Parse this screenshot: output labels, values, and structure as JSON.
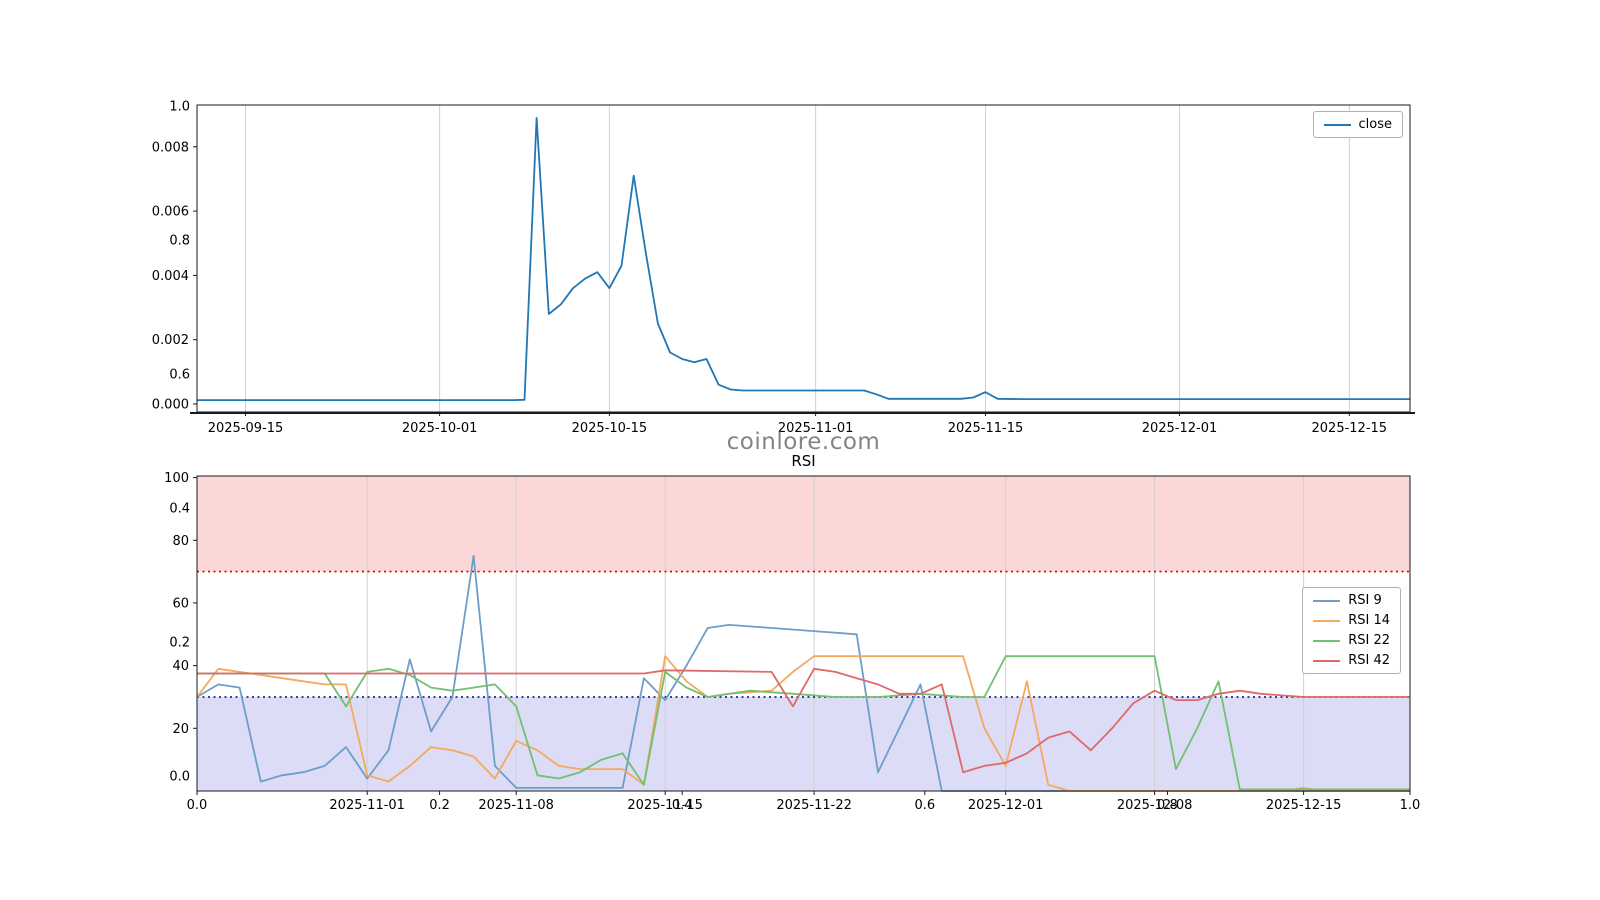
{
  "watermark": "coinlore.com",
  "figure_axis": {
    "x_ticks": [
      "0.0",
      "0.2",
      "0.4",
      "0.6",
      "0.8",
      "1.0"
    ],
    "y_ticks": [
      "0.0",
      "0.2",
      "0.4",
      "0.6",
      "0.8",
      "1.0"
    ]
  },
  "chart_data": [
    {
      "type": "line",
      "name": "price",
      "title": "",
      "x_start": "2025-09-11",
      "x_end": "2025-12-20",
      "x_ticks": [
        "2025-09-15",
        "2025-10-01",
        "2025-10-15",
        "2025-11-01",
        "2025-11-15",
        "2025-12-01",
        "2025-12-15"
      ],
      "ylim": [
        -0.00025,
        0.0093
      ],
      "y_ticks": [
        0,
        0.002,
        0.004,
        0.006,
        0.008
      ],
      "y_tick_labels": [
        "0.000",
        "0.002",
        "0.004",
        "0.006",
        "0.008"
      ],
      "grid_color": "#d0d0d0",
      "legend_position": "upper right",
      "series": [
        {
          "name": "close",
          "color": "#2077b4",
          "days": [
            0,
            26,
            27,
            28,
            29,
            30,
            31,
            32,
            33,
            34,
            35,
            36,
            37,
            38,
            39,
            40,
            41,
            42,
            43,
            44,
            45,
            55,
            56,
            57,
            63,
            64,
            65,
            66,
            68,
            100
          ],
          "values": [
            0.00012,
            0.00012,
            0.00013,
            0.0089,
            0.0028,
            0.0031,
            0.0036,
            0.0039,
            0.0041,
            0.0036,
            0.0043,
            0.0071,
            0.0047,
            0.0025,
            0.0016,
            0.0014,
            0.0013,
            0.0014,
            0.0006,
            0.00045,
            0.00042,
            0.00042,
            0.0003,
            0.00016,
            0.00016,
            0.0002,
            0.00037,
            0.00016,
            0.00015,
            0.00015
          ]
        }
      ]
    },
    {
      "type": "line",
      "name": "rsi",
      "title": "RSI",
      "x_start": "2025-10-24",
      "x_end": "2025-12-20",
      "x_ticks": [
        "2025-11-01",
        "2025-11-08",
        "2025-11-15",
        "2025-11-22",
        "2025-12-01",
        "2025-12-08",
        "2025-12-15"
      ],
      "ylim": [
        0,
        100
      ],
      "y_ticks": [
        20,
        40,
        60,
        80,
        100
      ],
      "y_tick_labels": [
        "20",
        "40",
        "60",
        "80",
        "100"
      ],
      "grid_color": "#d0d0d0",
      "legend_position": "right",
      "bands": [
        {
          "name": "overbought-band",
          "from": 70,
          "to": 100.5,
          "color": "#fcd7d7"
        },
        {
          "name": "oversold-band",
          "from": 0,
          "to": 30,
          "color": "#dcdcf6"
        }
      ],
      "hlines": [
        {
          "name": "overbought-threshold",
          "y": 70,
          "color": "#d40000"
        },
        {
          "name": "oversold-threshold",
          "y": 30,
          "color": "#00008b"
        }
      ],
      "series": [
        {
          "name": "RSI 9",
          "color": "#6d9ec9",
          "days": [
            0,
            1,
            2,
            3,
            4,
            5,
            6,
            7,
            8,
            9,
            10,
            11,
            12,
            13,
            14,
            15,
            20,
            21,
            22,
            23,
            24,
            25,
            27,
            29,
            31,
            32,
            33,
            34,
            35,
            57
          ],
          "values": [
            30,
            34,
            33,
            3,
            5,
            6,
            8,
            14,
            4,
            13,
            42,
            19,
            30,
            75,
            8,
            1,
            1,
            36,
            29,
            40,
            52,
            53,
            52,
            51,
            50,
            6,
            20,
            34,
            0,
            0
          ]
        },
        {
          "name": "RSI 14",
          "color": "#f5a85e",
          "days": [
            0,
            1,
            2,
            3,
            4,
            5,
            6,
            7,
            8,
            9,
            10,
            11,
            12,
            13,
            14,
            15,
            16,
            17,
            18,
            20,
            21,
            22,
            23,
            24,
            25,
            27,
            28,
            29,
            36,
            37,
            38,
            39,
            40,
            41,
            51,
            52,
            53,
            57
          ],
          "values": [
            30,
            39,
            38,
            37,
            36,
            35,
            34,
            34,
            5,
            3,
            8,
            14,
            13,
            11,
            4,
            16,
            13,
            8,
            7,
            7,
            2,
            43,
            35,
            30,
            31,
            32,
            38,
            43,
            43,
            20,
            8,
            35,
            2,
            0,
            0,
            1,
            0,
            0
          ]
        },
        {
          "name": "RSI 22",
          "color": "#72c072",
          "days": [
            0,
            6,
            7,
            8,
            9,
            10,
            11,
            12,
            13,
            14,
            15,
            16,
            17,
            18,
            19,
            20,
            21,
            22,
            23,
            24,
            25,
            26,
            28,
            30,
            32,
            34,
            36,
            37,
            38,
            45,
            46,
            47,
            48,
            49,
            57
          ],
          "values": [
            37.5,
            37.5,
            27,
            38,
            39,
            37,
            33,
            32,
            33,
            34,
            27,
            5,
            4,
            6,
            10,
            12,
            2,
            38,
            33,
            30,
            31,
            32,
            31,
            30,
            30,
            31,
            30,
            30,
            43,
            43,
            7,
            20,
            35,
            0.5,
            0.5
          ]
        },
        {
          "name": "RSI 42",
          "color": "#dd6a68",
          "days": [
            0,
            21,
            22,
            27,
            28,
            29,
            30,
            31,
            32,
            33,
            34,
            35,
            36,
            37,
            38,
            39,
            40,
            41,
            42,
            43,
            44,
            45,
            46,
            47,
            48,
            49,
            50,
            52,
            57
          ],
          "values": [
            37.5,
            37.5,
            38.5,
            38,
            27,
            39,
            38,
            36,
            34,
            31,
            31,
            34,
            6,
            8,
            9,
            12,
            17,
            19,
            13,
            20,
            28,
            32,
            29,
            29,
            31,
            32,
            31,
            30,
            30
          ]
        }
      ]
    }
  ]
}
